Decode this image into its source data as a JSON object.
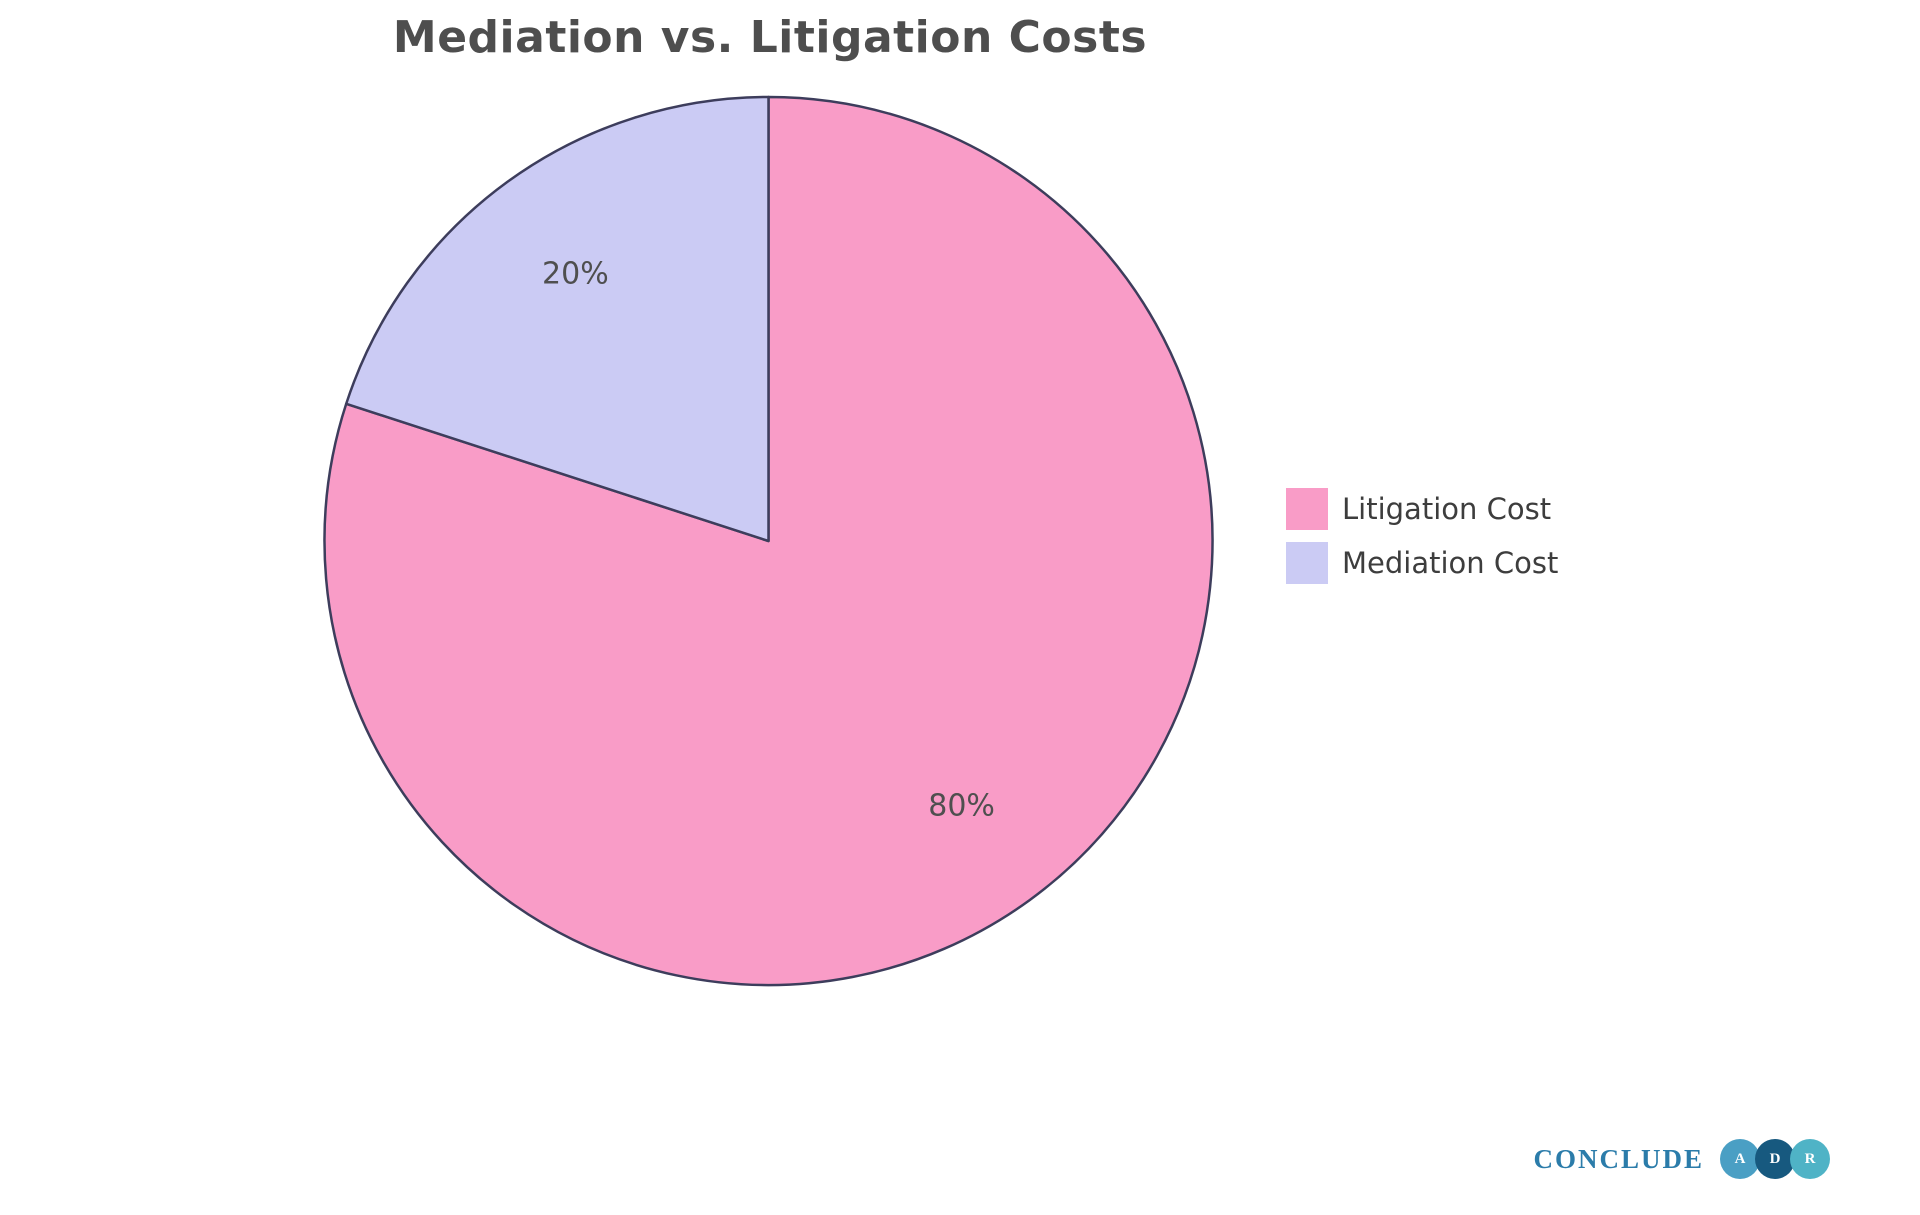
{
  "title": "Mediation vs. Litigation Costs",
  "chart_data": {
    "type": "pie",
    "title": "Mediation vs. Litigation Costs",
    "labels": [
      "Litigation Cost",
      "Mediation Cost"
    ],
    "values": [
      80,
      20
    ],
    "unit": "%",
    "value_labels": [
      "80%",
      "20%"
    ],
    "colors": [
      "#F99CC7",
      "#CBCBF4"
    ],
    "stroke_color": "#3d3d5c",
    "label_color": "#4f4f4f",
    "start_angle_deg": 0,
    "direction": "clockwise",
    "legend_position": "right"
  },
  "legend": {
    "items": [
      {
        "label": "Litigation Cost",
        "color": "#F99CC7"
      },
      {
        "label": "Mediation Cost",
        "color": "#CBCBF4"
      }
    ]
  },
  "branding": {
    "wordmark": "CONCLUDE",
    "wordmark_color": "#2b7caa",
    "badges": [
      {
        "letter": "A",
        "color": "#4a9fc4"
      },
      {
        "letter": "D",
        "color": "#17597f"
      },
      {
        "letter": "R",
        "color": "#4fb3c6"
      }
    ]
  }
}
